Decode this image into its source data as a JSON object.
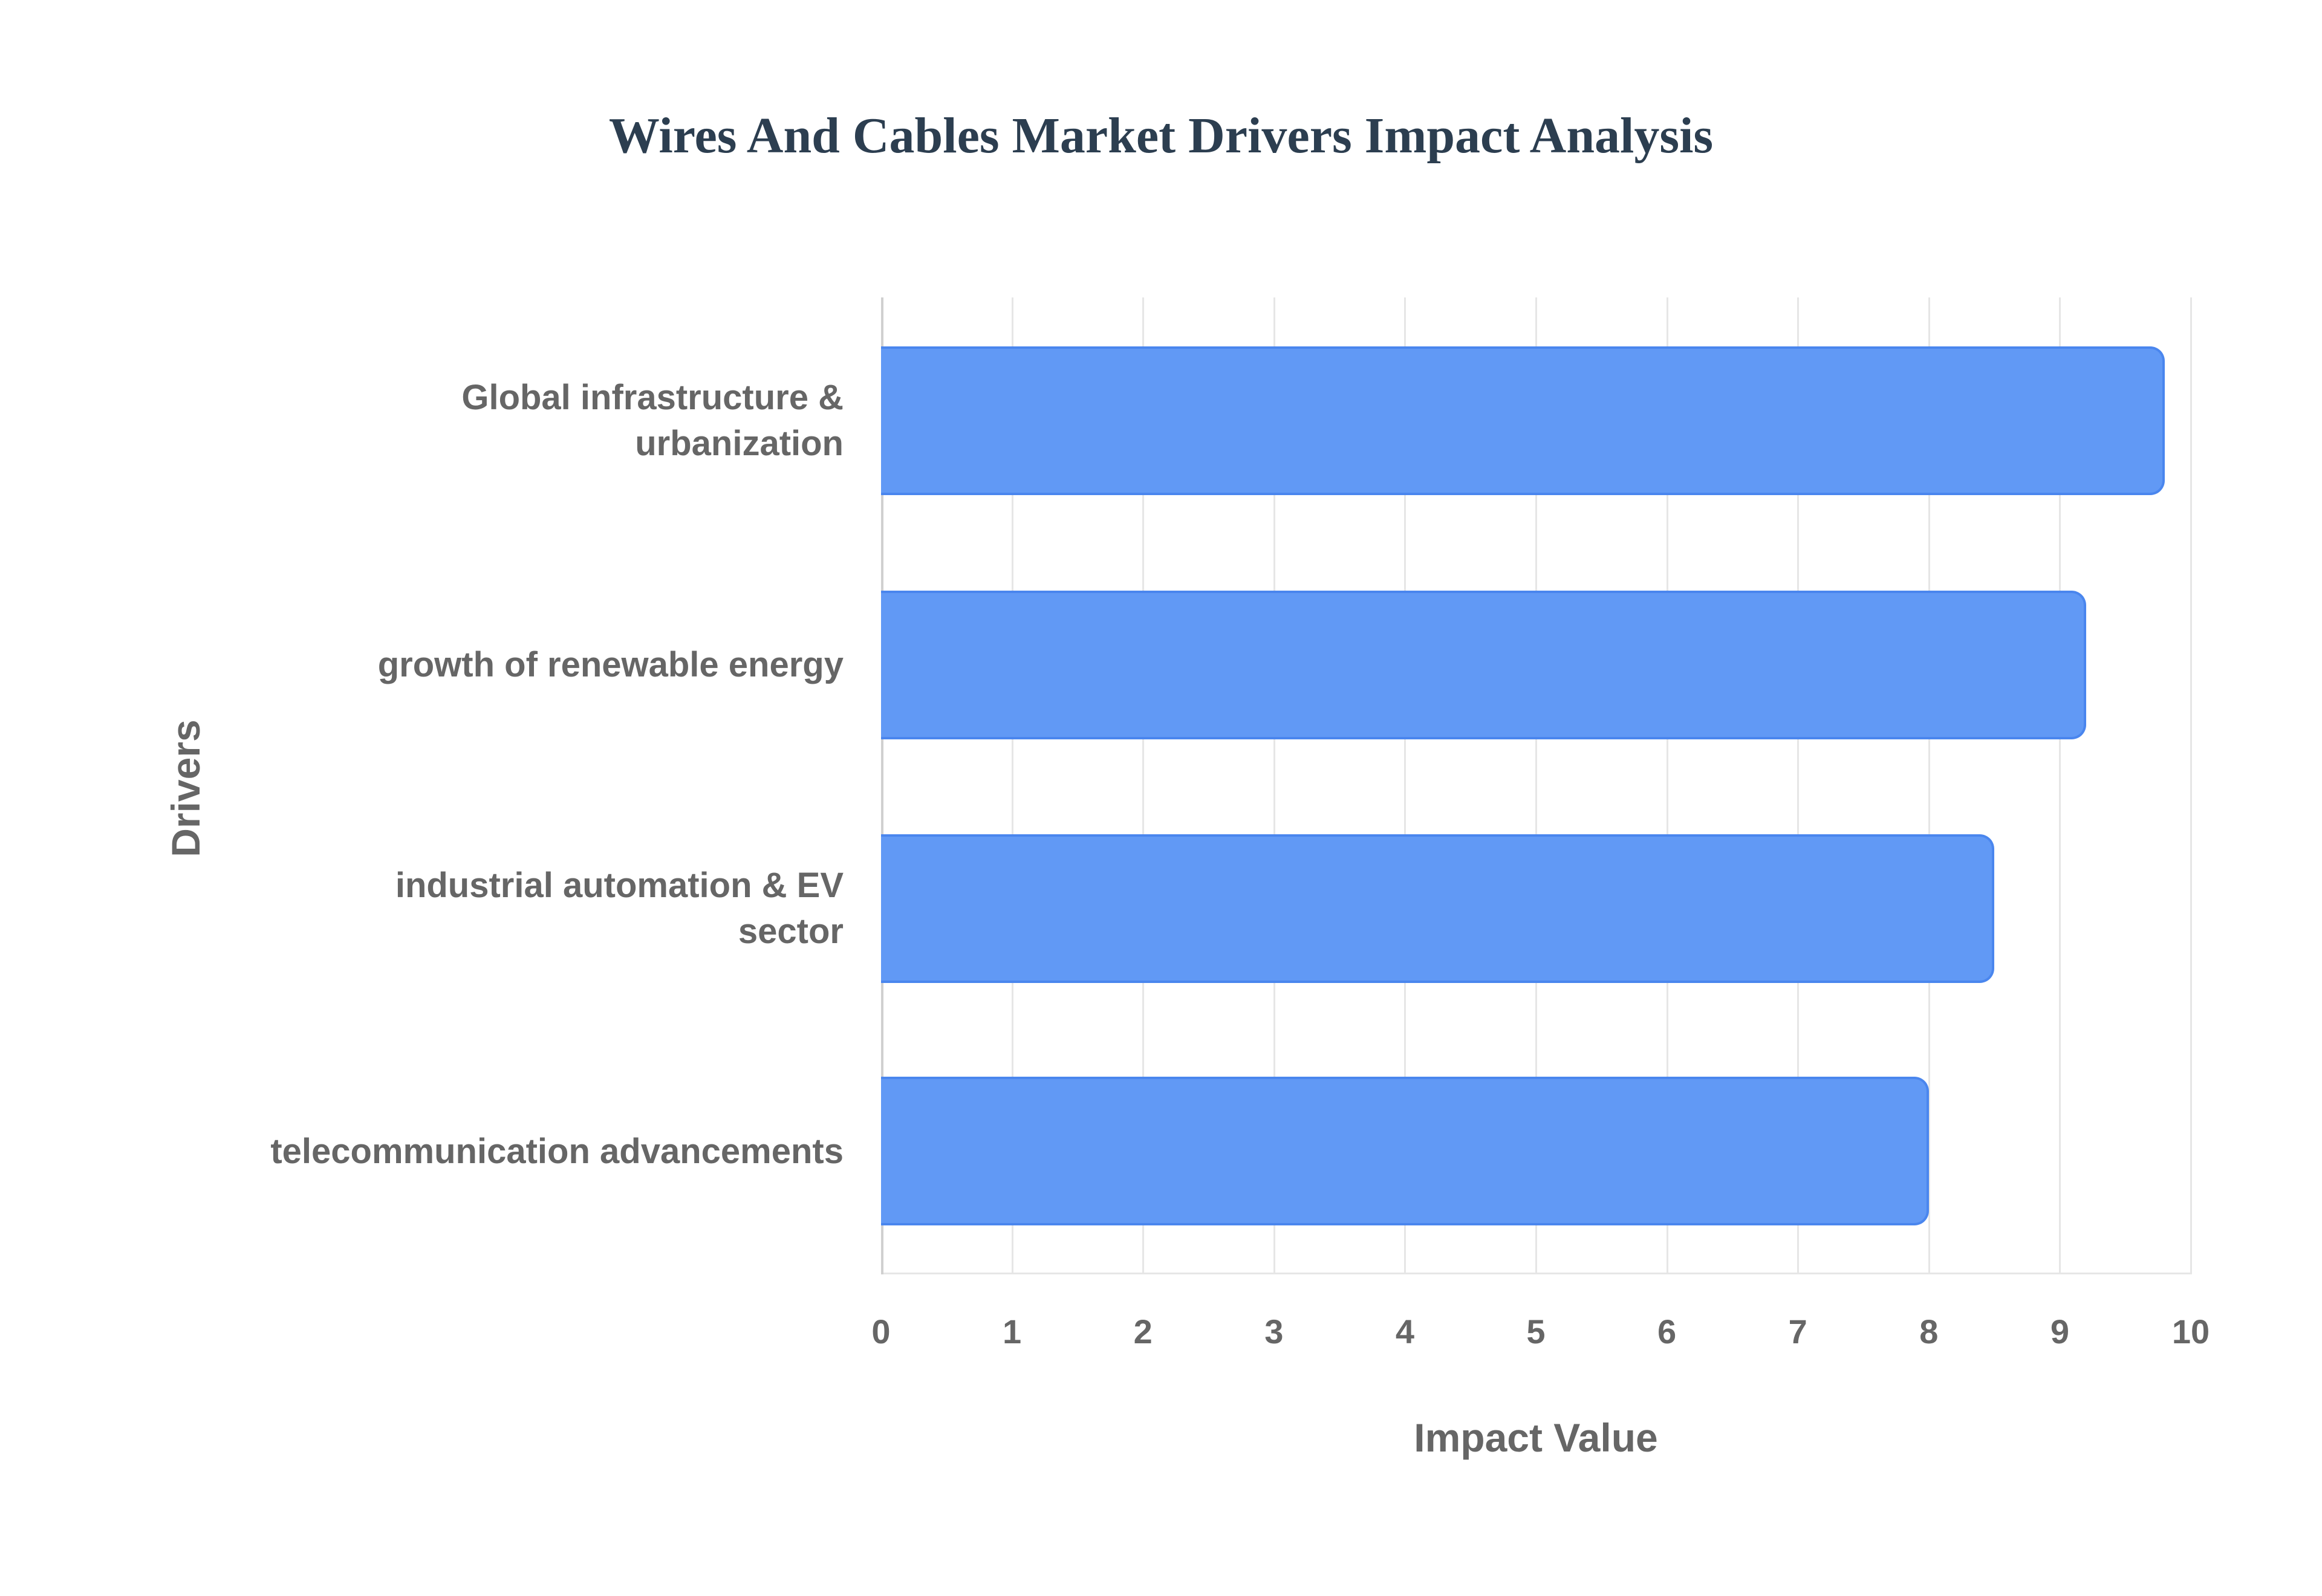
{
  "chart_data": {
    "type": "bar",
    "orientation": "horizontal",
    "title": "Wires And Cables Market Drivers Impact Analysis",
    "xlabel": "Impact Value",
    "ylabel": "Drivers",
    "categories": [
      "Global infrastructure & urbanization",
      "growth of renewable energy",
      "industrial automation & EV sector",
      "telecommunication advancements"
    ],
    "values": [
      9.8,
      9.2,
      8.5,
      8.0
    ],
    "xlim": [
      0,
      10
    ],
    "xticks": [
      "0",
      "1",
      "2",
      "3",
      "4",
      "5",
      "6",
      "7",
      "8",
      "9",
      "10"
    ],
    "grid": true,
    "legend": null,
    "colors": {
      "bar": "#6199f5",
      "bar_border": "#4a86ee",
      "title": "#2c3e50",
      "axis_text": "#666666"
    }
  },
  "labels": {
    "cat0_line1": "Global infrastructure &",
    "cat0_line2": "urbanization",
    "cat1": "growth of renewable energy",
    "cat2_line1": "industrial automation & EV",
    "cat2_line2": "sector",
    "cat3": "telecommunication advancements"
  }
}
